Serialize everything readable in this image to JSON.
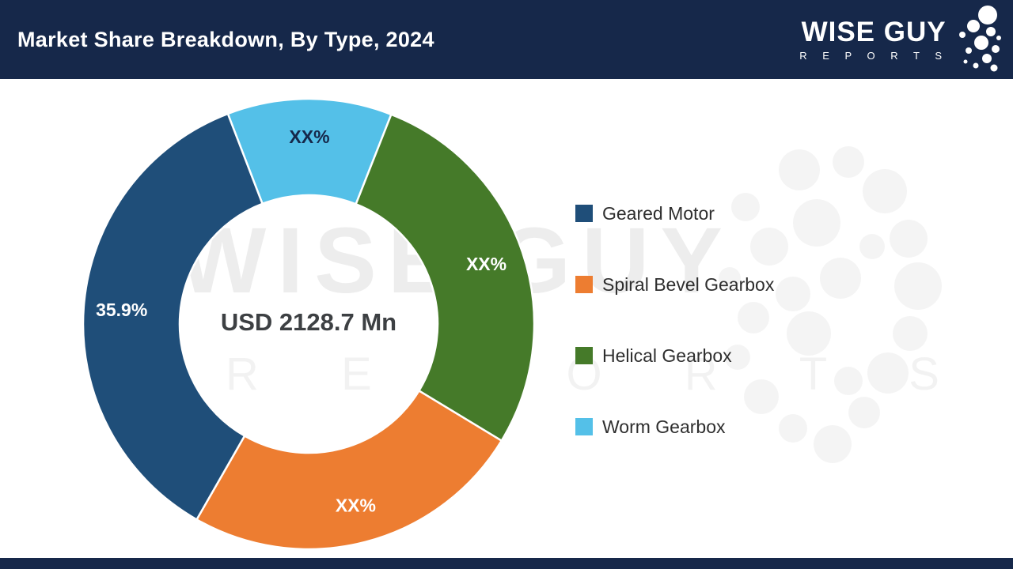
{
  "header": {
    "title": "Market Share Breakdown, By Type, 2024",
    "logo_line1": "WISE GUY",
    "logo_line2": "R E P O R T S"
  },
  "watermark": {
    "line1": "WISE GUY",
    "line2": "R E P O R T S"
  },
  "chart_data": {
    "type": "donut",
    "title": "Market Share Breakdown, By Type, 2024",
    "center_label": "USD 2128.7 Mn",
    "legend_position": "right",
    "start_angle_deg": -21,
    "draw_order": [
      3,
      2,
      1,
      0
    ],
    "segments": [
      {
        "label": "Geared Motor",
        "value": 35.9,
        "display": "35.9%",
        "color": "#1f4e79",
        "label_color": "#ffffff"
      },
      {
        "label": "Spiral Bevel Gearbox",
        "value": 24.6,
        "display": "XX%",
        "color": "#ed7d31",
        "label_color": "#ffffff"
      },
      {
        "label": "Helical Gearbox",
        "value": 27.7,
        "display": "XX%",
        "color": "#457a29",
        "label_color": "#ffffff"
      },
      {
        "label": "Worm Gearbox",
        "value": 11.8,
        "display": "XX%",
        "color": "#54c0e8",
        "label_color": "#16284a"
      }
    ]
  }
}
